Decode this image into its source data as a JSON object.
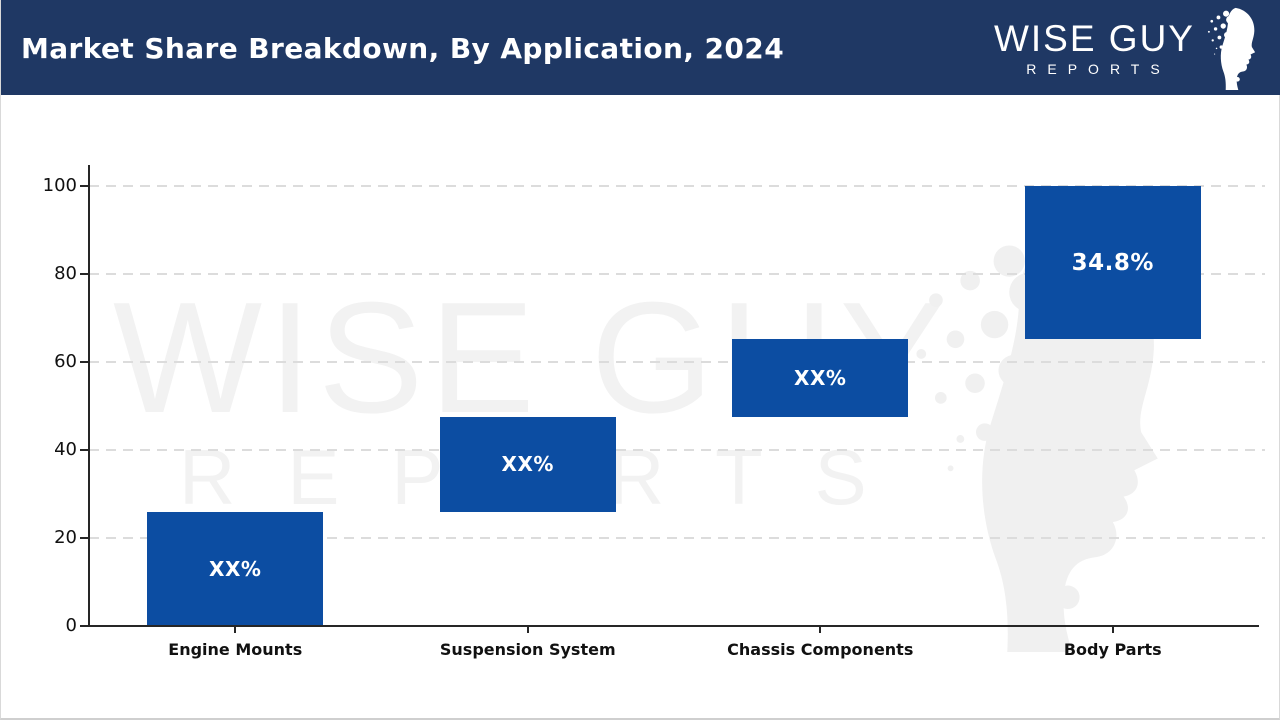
{
  "header": {
    "title": "Market Share Breakdown, By Application, 2024",
    "bg_color": "#1f3864",
    "logo": {
      "line1": "WISE GUY",
      "line2": "REPORTS"
    }
  },
  "watermark": {
    "line1": "WISE GUY",
    "line2": "REPORTS"
  },
  "colors": {
    "header_bg": "#1f3864",
    "bar": "#0c4da2",
    "bar_label": "#ffffff",
    "watermark": "#f2f2f2",
    "grid": "#dcdcdc",
    "axis": "#262626"
  },
  "chart_data": {
    "type": "bar",
    "variant": "floating-waterfall",
    "title": "Market Share Breakdown, By Application, 2024",
    "categories": [
      "Engine Mounts",
      "Suspension System",
      "Chassis Components",
      "Body Parts"
    ],
    "segments": [
      {
        "category": "Engine Mounts",
        "start": 0,
        "end": 26,
        "label": "XX%"
      },
      {
        "category": "Suspension System",
        "start": 26,
        "end": 47.5,
        "label": "XX%"
      },
      {
        "category": "Chassis Components",
        "start": 47.5,
        "end": 65.2,
        "label": "XX%"
      },
      {
        "category": "Body Parts",
        "start": 65.2,
        "end": 100,
        "label": "34.8%"
      }
    ],
    "only_explicit_value": 34.8,
    "yticks": [
      0,
      20,
      40,
      60,
      80,
      100
    ],
    "ylim": [
      0,
      100
    ],
    "xlabel": "",
    "ylabel": "",
    "grid": "horizontal-dashed",
    "legend": "none",
    "bar_color": "#0c4da2",
    "label_color": "#ffffff"
  }
}
